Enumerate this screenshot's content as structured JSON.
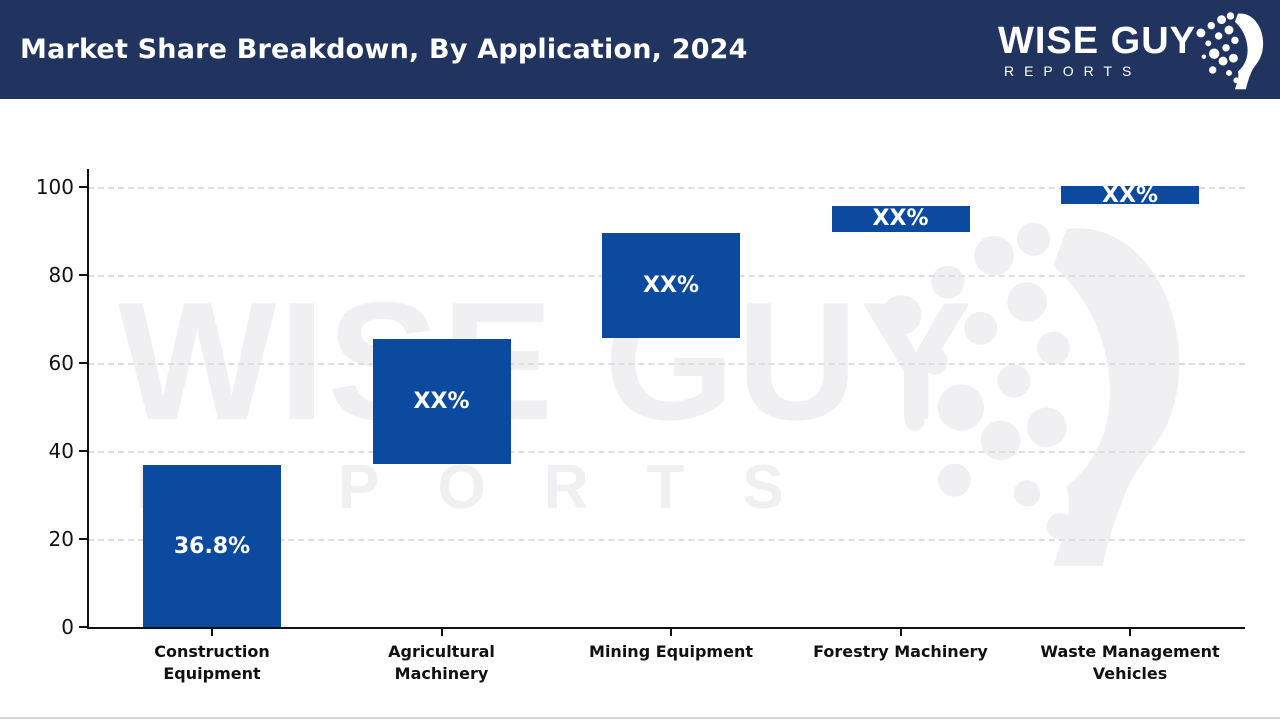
{
  "header": {
    "title": "Market Share Breakdown, By Application, 2024",
    "logo": {
      "wordmark": "WISE GUY",
      "subtext": "REPORTS"
    }
  },
  "watermark": {
    "line1": "WISE GUY",
    "line2": "REPORTS"
  },
  "chart_data": {
    "type": "bar",
    "subtype": "waterfall",
    "title": "Market Share Breakdown, By Application, 2024",
    "categories": [
      "Construction\nEquipment",
      "Agricultural\nMachinery",
      "Mining Equipment",
      "Forestry Machinery",
      "Waste Management\nVehicles"
    ],
    "segments": [
      {
        "category": "Construction Equipment",
        "start": 0,
        "end": 36.8,
        "label": "36.8%"
      },
      {
        "category": "Agricultural Machinery",
        "start": 37.0,
        "end": 65.5,
        "label": "XX%"
      },
      {
        "category": "Mining Equipment",
        "start": 65.7,
        "end": 89.5,
        "label": "XX%"
      },
      {
        "category": "Forestry Machinery",
        "start": 89.8,
        "end": 95.7,
        "label": "XX%"
      },
      {
        "category": "Waste Management Vehicles",
        "start": 96.1,
        "end": 100.2,
        "label": "XX%"
      }
    ],
    "ylim": [
      0,
      104
    ],
    "yticks": [
      0,
      20,
      40,
      60,
      80,
      100
    ],
    "grid": "horizontal-dashed",
    "legend": null,
    "bar_color": "#0B4A9E",
    "value_label_color": "#FFFFFF"
  },
  "colors": {
    "header_bg": "#21345F",
    "bar": "#0B4A9E",
    "grid": "#DEDEDE",
    "axis": "#111111",
    "watermark": "#F0F0F2"
  }
}
